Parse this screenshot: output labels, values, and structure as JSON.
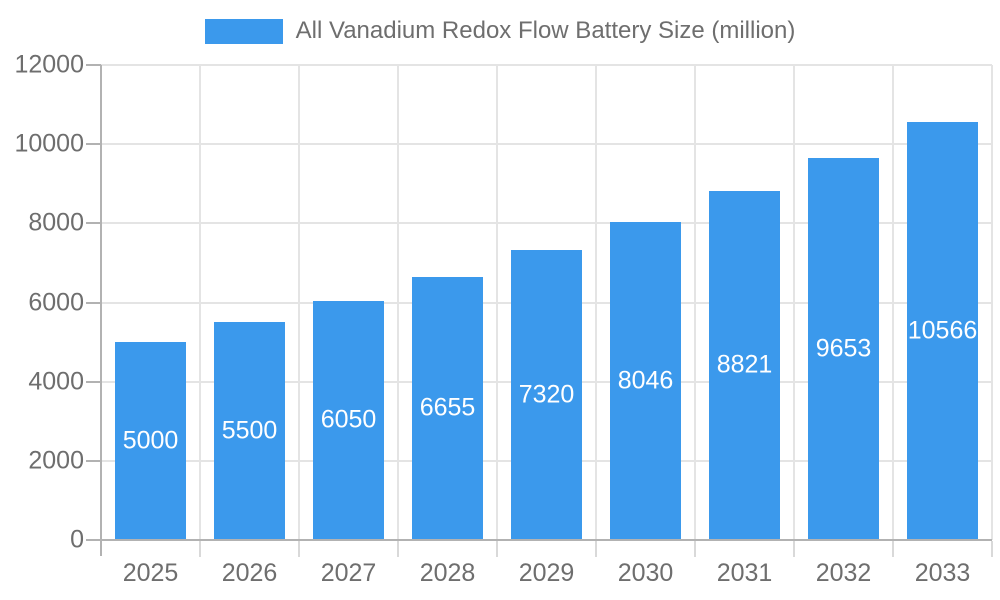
{
  "chart_data": {
    "type": "bar",
    "legend_label": "All Vanadium Redox Flow Battery Size (million)",
    "categories": [
      "2025",
      "2026",
      "2027",
      "2028",
      "2029",
      "2030",
      "2031",
      "2032",
      "2033"
    ],
    "values": [
      5000,
      5500,
      6050,
      6655,
      7320,
      8046,
      8821,
      9653,
      10566
    ],
    "y_ticks": [
      0,
      2000,
      4000,
      6000,
      8000,
      10000,
      12000
    ],
    "ylim": [
      0,
      12000
    ],
    "xlabel": "",
    "ylabel": "",
    "grid": "on",
    "legend_position": "top-center",
    "value_labels": "inside-center",
    "colors": {
      "bar": "#3b99ec",
      "value_label_text": "#ffffff",
      "axis_text": "#6e6e6e",
      "gridline": "#e4e4e4",
      "axis_line": "#b2b2b2",
      "background": "#ffffff"
    }
  }
}
